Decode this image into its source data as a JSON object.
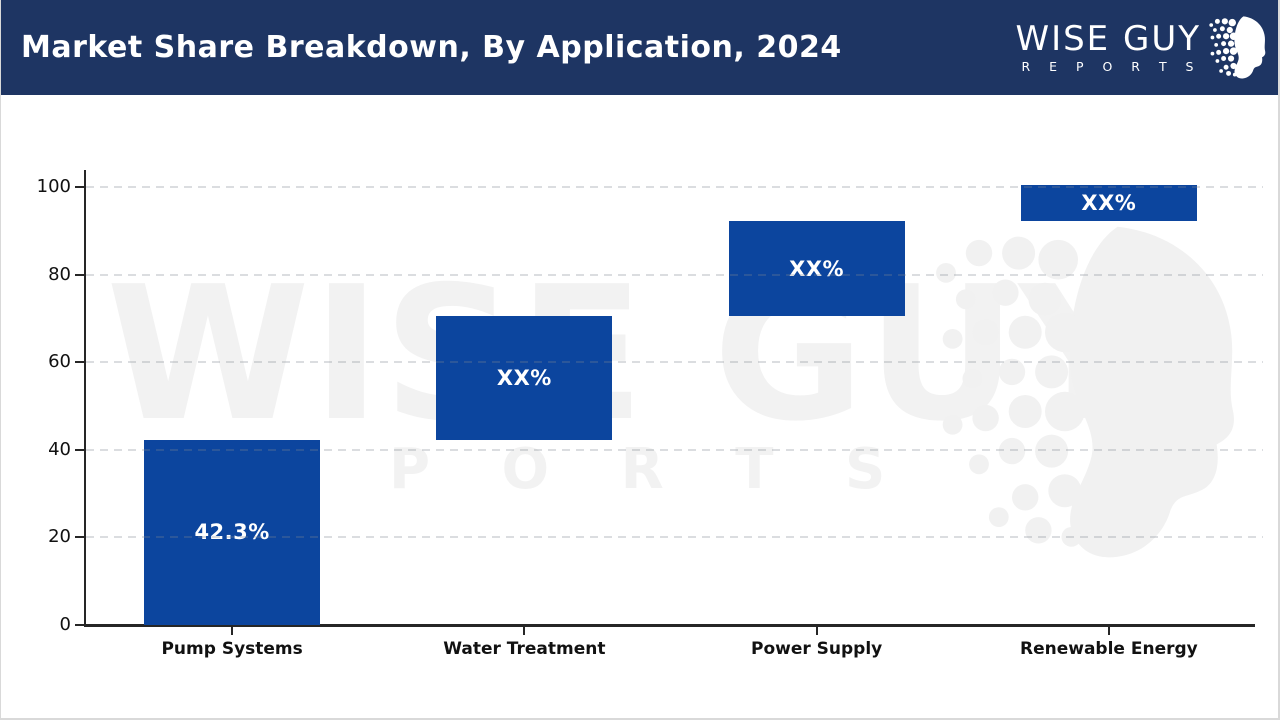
{
  "header": {
    "title": "Market Share Breakdown, By Application, 2024",
    "logo": {
      "brand": "WISE GUY",
      "sub": "R E P O R T S"
    }
  },
  "watermark": {
    "line1": "WISE GUY",
    "line2": "P O R T S"
  },
  "colors": {
    "header_bg": "#1e3563",
    "bar": "#0c459e",
    "bar_label": "#ffffff",
    "axis": "#262626",
    "tick_label": "#111111",
    "gridline": "#dcdcdc",
    "watermark": "#f2f2f2"
  },
  "chart_data": {
    "type": "bar",
    "subtype": "waterfall",
    "title": "Market Share Breakdown, By Application, 2024",
    "categories": [
      "Pump Systems",
      "Water Treatment",
      "Power Supply",
      "Renewable Energy"
    ],
    "segments": [
      {
        "category": "Pump Systems",
        "start": 0,
        "end": 42.3,
        "label": "42.3%"
      },
      {
        "category": "Water Treatment",
        "start": 42.3,
        "end": 70.5,
        "label": "XX%"
      },
      {
        "category": "Power Supply",
        "start": 70.5,
        "end": 92.2,
        "label": "XX%"
      },
      {
        "category": "Renewable Energy",
        "start": 92.2,
        "end": 100.4,
        "label": "XX%"
      }
    ],
    "xlabel": "",
    "ylabel": "",
    "ylim": [
      0,
      105
    ],
    "yticks": [
      0,
      20,
      40,
      60,
      80,
      100
    ],
    "ytick_labels": [
      "0",
      "20",
      "40",
      "60",
      "80",
      "100"
    ],
    "grid": "horizontal-dashed",
    "legend": null
  }
}
